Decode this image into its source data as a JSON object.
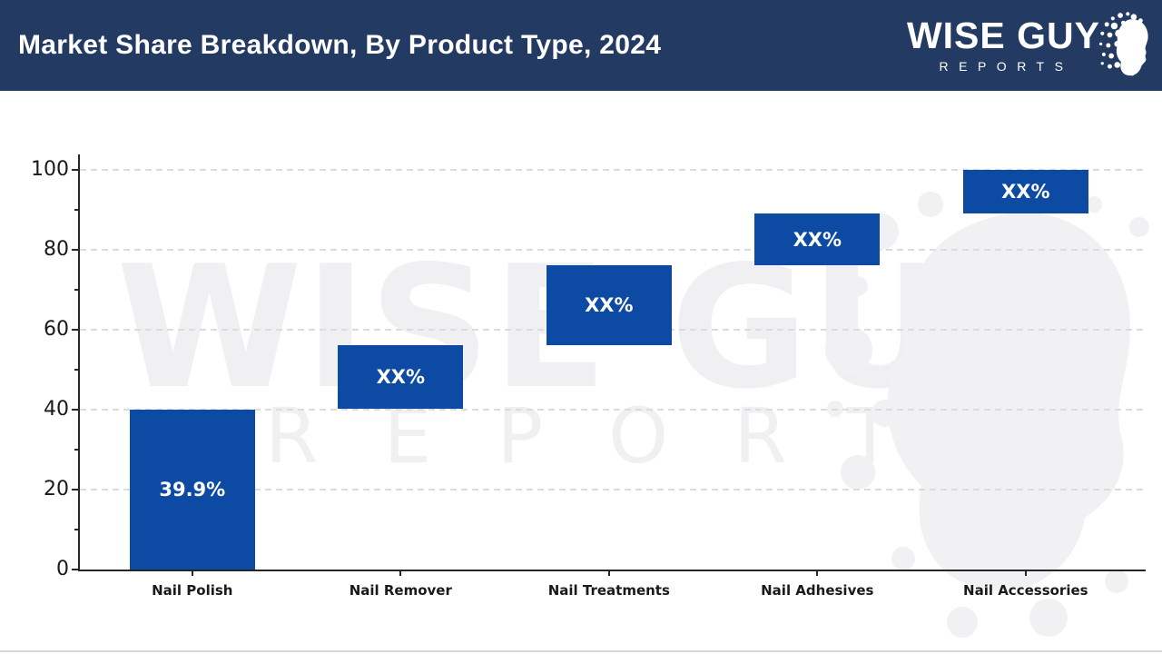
{
  "header": {
    "title": "Market Share Breakdown, By Product Type, 2024",
    "logo": {
      "line1": "WISE GUY",
      "line2": "REPORTS"
    }
  },
  "watermark": {
    "line1": "WISE GUY",
    "line2": "REPORTS"
  },
  "colors": {
    "header_bg": "#233a63",
    "bar_blue": "#0d4aa3",
    "axis": "#262626",
    "grid": "#dcdcdc",
    "watermark": "#f0f0f2",
    "bar_label": "#ffffff"
  },
  "chart_data": {
    "type": "bar",
    "subtype": "waterfall",
    "title": "Market Share Breakdown, By Product Type, 2024",
    "xlabel": "",
    "ylabel": "",
    "ylim": [
      0,
      100
    ],
    "yticks": [
      0,
      20,
      40,
      60,
      80,
      100
    ],
    "grid": "dashed-horizontal",
    "legend": "none",
    "categories": [
      "Nail Polish",
      "Nail Remover",
      "Nail Treatments",
      "Nail Adhesives",
      "Nail Accessories"
    ],
    "segments": [
      {
        "category": "Nail Polish",
        "start": 0,
        "end": 39.9,
        "label": "39.9%"
      },
      {
        "category": "Nail Remover",
        "start": 40.2,
        "end": 56.2,
        "label": "XX%"
      },
      {
        "category": "Nail Treatments",
        "start": 56.2,
        "end": 76.2,
        "label": "XX%"
      },
      {
        "category": "Nail Adhesives",
        "start": 76.2,
        "end": 89.0,
        "label": "XX%"
      },
      {
        "category": "Nail Accessories",
        "start": 89.0,
        "end": 100.0,
        "label": "XX%"
      }
    ],
    "bar_color": "#0d4aa3",
    "label_color": "#ffffff"
  }
}
